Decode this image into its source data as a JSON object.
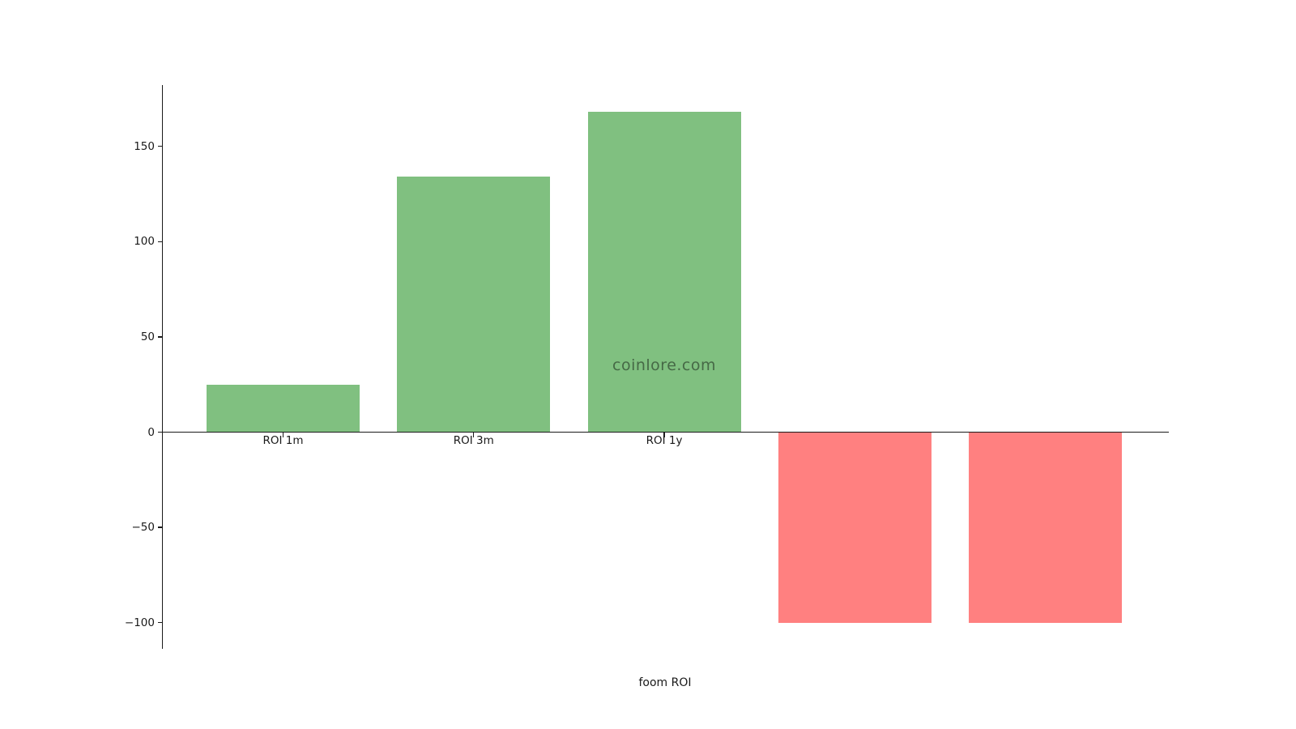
{
  "watermark": {
    "text": "coinlore.com",
    "color": "#466946"
  },
  "chart_data": {
    "type": "bar",
    "title": "",
    "xlabel": "foom ROI",
    "ylabel": "",
    "categories": [
      "ROI 1m",
      "ROI 3m",
      "ROI 1y",
      "",
      ""
    ],
    "values": [
      24.7,
      134,
      168,
      -100,
      -100
    ],
    "yticks": [
      150,
      100,
      50,
      0,
      -50,
      -100
    ],
    "ylim": [
      -114,
      182
    ],
    "bar_colors": {
      "positive": "#80c080",
      "negative": "#ff8080"
    },
    "axis_color": "#1a1a1a",
    "text_color": "#1a1a1a",
    "background": "#ffffff",
    "grid": false,
    "legend": "none"
  }
}
